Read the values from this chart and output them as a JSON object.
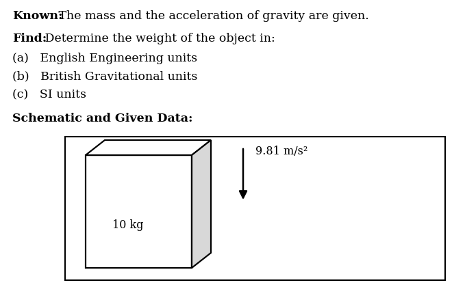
{
  "background_color": "#ffffff",
  "known_bold": "Known:",
  "known_text": " The mass and the acceleration of gravity are given.",
  "find_bold": "Find:",
  "find_text": " Determine the weight of the object in:",
  "item_a": "(a)   English Engineering units",
  "item_b": "(b)   British Gravitational units",
  "item_c": "(c)   SI units",
  "section_bold": "Schematic and Given Data:",
  "mass_label": "10 kg",
  "gravity_label": "9.81 m/s²",
  "font_size_main": 12.5,
  "font_size_label": 11.5
}
